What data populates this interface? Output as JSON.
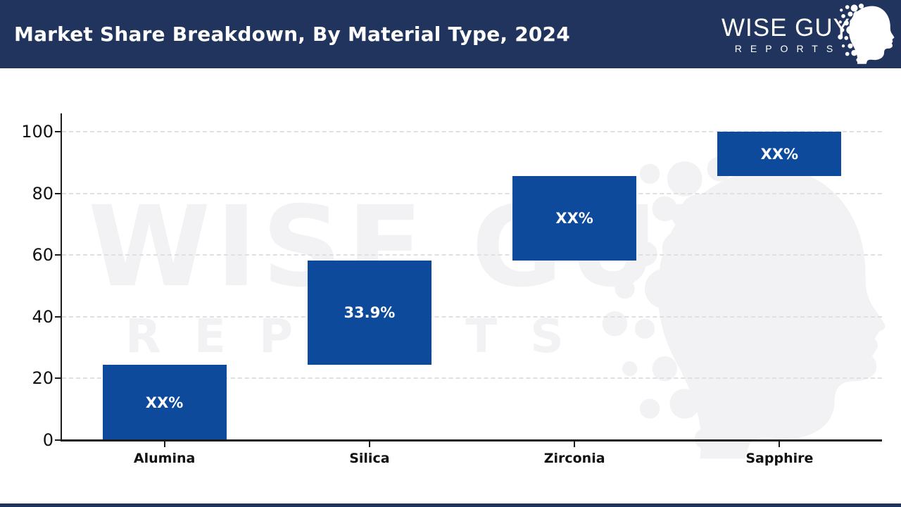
{
  "header": {
    "title": "Market Share Breakdown, By Material Type, 2024",
    "logo": {
      "line1": "WISE GUY",
      "line2": "REPORTS"
    }
  },
  "watermark": {
    "line1": "WISE GUY",
    "line2": "REPORTS"
  },
  "colors": {
    "header_bg": "#20345e",
    "footer_bg": "#20345e",
    "bar": "#0d4a9c",
    "bar_label": "#ffffff",
    "axis": "#1c1c1c",
    "gridline": "#e0e0e3",
    "watermark": "#f2f2f4"
  },
  "chart_data": {
    "type": "bar",
    "subtype": "waterfall",
    "title": "Market Share Breakdown, By Material Type, 2024",
    "categories": [
      "Alumina",
      "Silica",
      "Zirconia",
      "Sapphire"
    ],
    "bars": [
      {
        "category": "Alumina",
        "start": 0,
        "end": 24.4,
        "label": "XX%"
      },
      {
        "category": "Silica",
        "start": 24.4,
        "end": 58.3,
        "label": "33.9%"
      },
      {
        "category": "Zirconia",
        "start": 58.3,
        "end": 85.6,
        "label": "XX%"
      },
      {
        "category": "Sapphire",
        "start": 85.6,
        "end": 100,
        "label": "XX%"
      }
    ],
    "xlabel": "",
    "ylabel": "",
    "ylim": [
      0,
      100
    ],
    "yticks": [
      0,
      20,
      40,
      60,
      80,
      100
    ],
    "grid": "horizontal-dashed",
    "legend": "none",
    "bar_color": "#0d4a9c",
    "label_color": "#ffffff"
  }
}
